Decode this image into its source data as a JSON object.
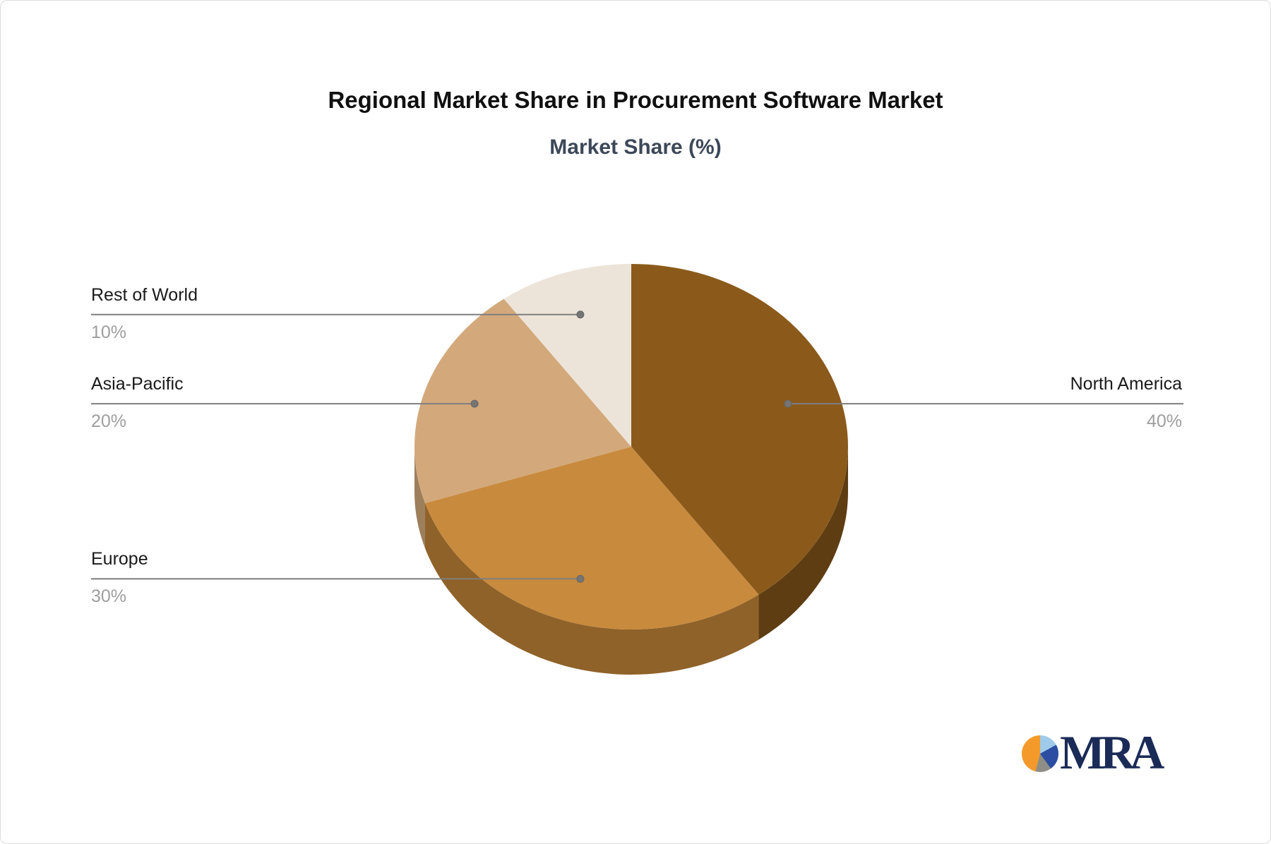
{
  "title": "Regional Market Share in Procurement Software Market",
  "subtitle": "Market Share (%)",
  "chart_data": {
    "type": "pie",
    "title": "Regional Market Share in Procurement Software Market",
    "subtitle": "Market Share (%)",
    "unit": "%",
    "effect_3d": true,
    "direction": "clockwise",
    "start_angle_deg": 0,
    "legend_position": "none",
    "slices": [
      {
        "label": "North America",
        "value": 40,
        "pct_label": "40%",
        "color": "#8B5A1B",
        "side_color": "#5E3D12",
        "label_side": "right"
      },
      {
        "label": "Europe",
        "value": 30,
        "pct_label": "30%",
        "color": "#C88A3D",
        "side_color": "#8F6229",
        "label_side": "left"
      },
      {
        "label": "Asia-Pacific",
        "value": 20,
        "pct_label": "20%",
        "color": "#D3A97B",
        "side_color": "#9E7F5C",
        "label_side": "left"
      },
      {
        "label": "Rest of World",
        "value": 10,
        "pct_label": "10%",
        "color": "#EDE4D9",
        "side_color": "#B2A89A",
        "label_side": "left"
      }
    ]
  },
  "colors": {
    "title": "#101010",
    "subtitle": "#3C4858",
    "label_text": "#1a1a1a",
    "pct_text": "#9E9E9E",
    "leader_line": "#7F7F7F",
    "leader_dot": "#757575",
    "background": "#ffffff",
    "logo_text": "#1B2B57"
  },
  "logo": {
    "text": "MRA",
    "pie": [
      {
        "color": "#9FCAEA",
        "from": 0,
        "to": 17
      },
      {
        "color": "#2B4EA2",
        "from": 17,
        "to": 40
      },
      {
        "color": "#8F8E86",
        "from": 40,
        "to": 54
      },
      {
        "color": "#F49A2A",
        "from": 54,
        "to": 100
      }
    ]
  }
}
